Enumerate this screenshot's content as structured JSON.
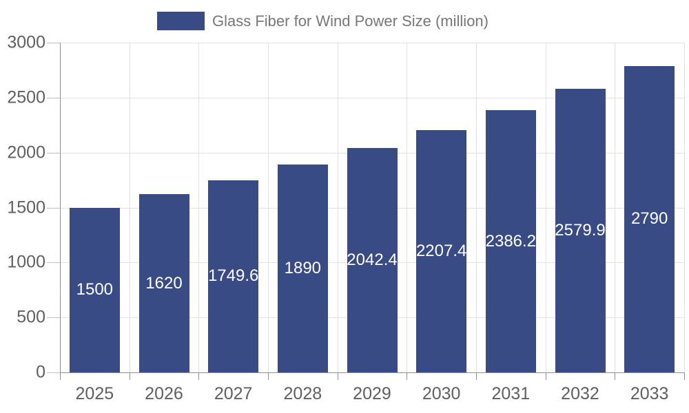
{
  "legend": {
    "label": "Glass Fiber for Wind Power Size (million)"
  },
  "chart_data": {
    "type": "bar",
    "title": "Glass Fiber for Wind Power Size (million)",
    "legend_entries": [
      "Glass Fiber for Wind Power Size (million)"
    ],
    "legend_position": "top-center",
    "categories": [
      "2025",
      "2026",
      "2027",
      "2028",
      "2029",
      "2030",
      "2031",
      "2032",
      "2033"
    ],
    "values": [
      1500,
      1620,
      1749.6,
      1890,
      2042.4,
      2207.4,
      2386.2,
      2579.9,
      2790
    ],
    "value_labels": [
      "1500",
      "1620",
      "1749.6",
      "1890",
      "2042.4",
      "2207.4",
      "2386.2",
      "2579.9",
      "2790"
    ],
    "xlabel": "",
    "ylabel": "",
    "ylim": [
      0,
      3000
    ],
    "yticks": [
      0,
      500,
      1000,
      1500,
      2000,
      2500,
      3000
    ],
    "grid": true,
    "colors": {
      "bar": "#394B84",
      "grid": "#e2e2e2",
      "axis_line": "#8f8f8f",
      "tick": "#c0c0c0",
      "axis_text": "#5f5f5f",
      "legend_text": "#777777",
      "value_text": "#ffffff",
      "background": "#ffffff"
    }
  }
}
